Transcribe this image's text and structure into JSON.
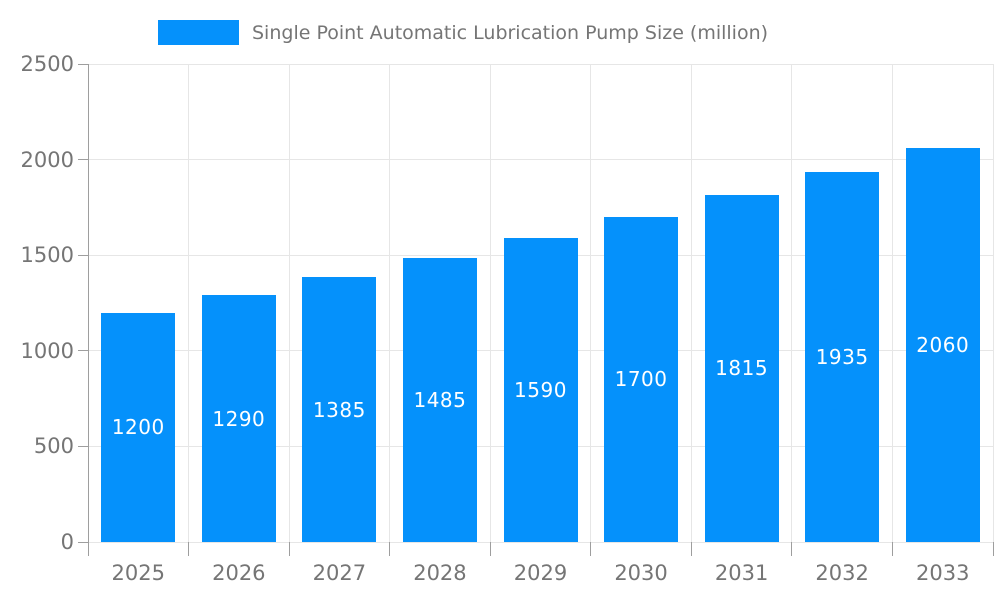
{
  "chart_data": {
    "type": "bar",
    "title": "Single Point Automatic Lubrication Pump Size (million)",
    "series_name": "Single Point Automatic Lubrication Pump Size (million)",
    "categories": [
      "2025",
      "2026",
      "2027",
      "2028",
      "2029",
      "2030",
      "2031",
      "2032",
      "2033"
    ],
    "values": [
      1200,
      1290,
      1385,
      1485,
      1590,
      1700,
      1815,
      1935,
      2060
    ],
    "xlabel": "",
    "ylabel": "",
    "ylim": [
      0,
      2500
    ],
    "yticks": [
      0,
      500,
      1000,
      1500,
      2000,
      2500
    ],
    "grid": true,
    "legend_position": "top",
    "value_label_position": "inside-center",
    "colors": {
      "bar": "#0591fb",
      "grid_line": "#e6e6e6",
      "axis_line": "#9e9e9e",
      "tick_label": "#757575",
      "legend_text": "#757575",
      "value_label": "#ffffff",
      "background": "#ffffff"
    }
  }
}
